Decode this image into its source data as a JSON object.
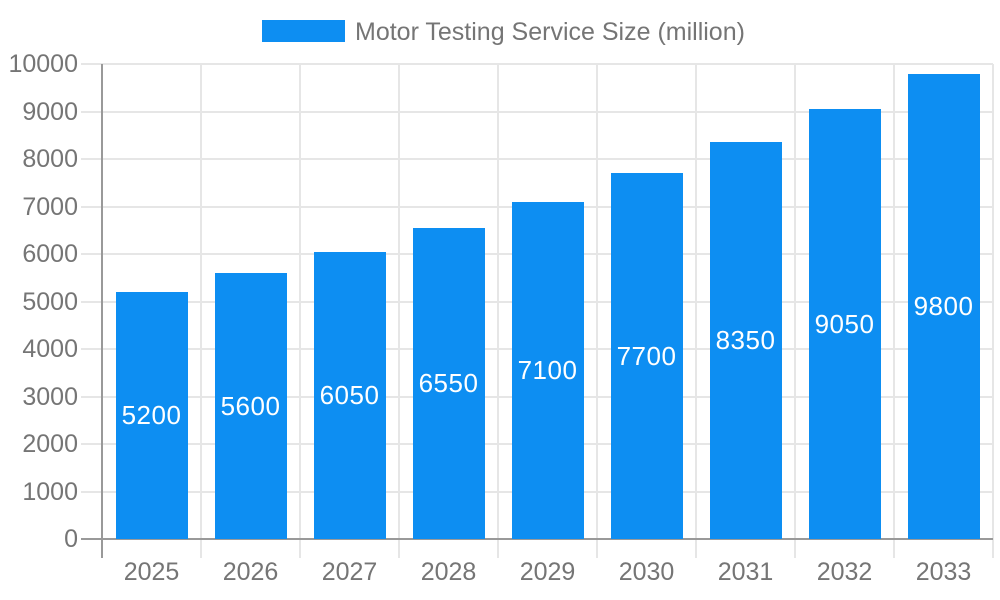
{
  "legend": {
    "label": "Motor Testing Service Size (million)"
  },
  "chart_data": {
    "type": "bar",
    "title": "Motor Testing Service Size (million)",
    "categories": [
      "2025",
      "2026",
      "2027",
      "2028",
      "2029",
      "2030",
      "2031",
      "2032",
      "2033"
    ],
    "series": [
      {
        "name": "Motor Testing Service Size (million)",
        "values": [
          5200,
          5600,
          6050,
          6550,
          7100,
          7700,
          8350,
          9050,
          9800
        ]
      }
    ],
    "xlabel": "",
    "ylabel": "",
    "ylim": [
      0,
      10000
    ],
    "yticks": [
      0,
      1000,
      2000,
      3000,
      4000,
      5000,
      6000,
      7000,
      8000,
      9000,
      10000
    ],
    "grid": true,
    "legend_position": "top-center",
    "value_labels_position": "inside-center",
    "colors": {
      "bar": "#0d8ef2",
      "value_label": "#ffffff",
      "axis_text": "#757575",
      "gridline": "#e6e6e6",
      "axis_line": "#999999",
      "background": "#ffffff"
    }
  }
}
